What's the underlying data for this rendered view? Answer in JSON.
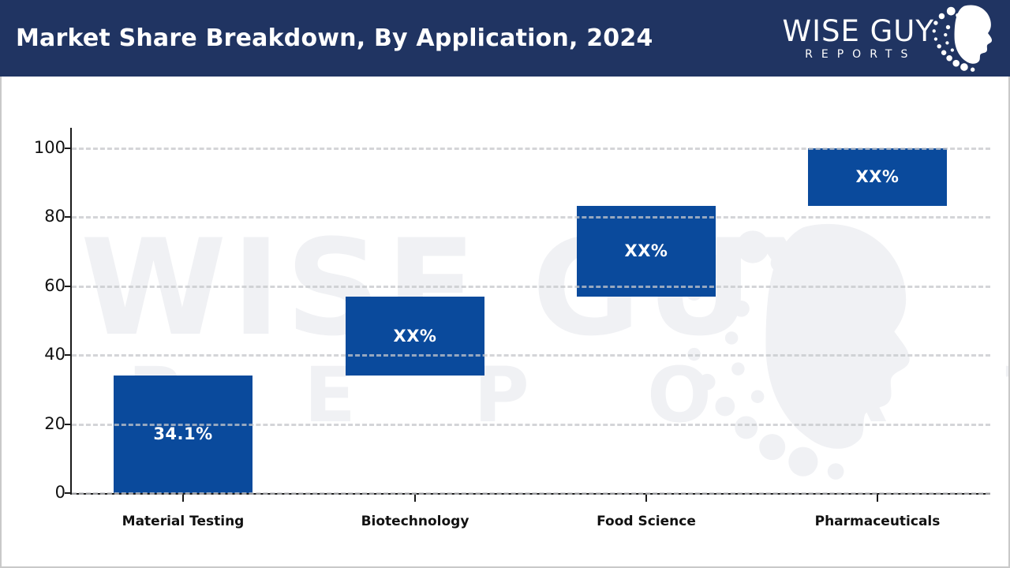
{
  "header": {
    "brand_line1": "WISE GUY",
    "brand_line2": "REPORTS"
  },
  "watermark": {
    "line1": "WISE GUY",
    "line2": "R E P O R T S"
  },
  "colors": {
    "header_bg": "#203462",
    "bar": "#0a4a9c",
    "bar_label": "#ffffff",
    "axis": "#1a1a1a",
    "gridline": "#c5c7cb",
    "watermark": "#f0f1f4",
    "title_text": "#ffffff"
  },
  "chart_data": {
    "type": "bar",
    "subtype": "waterfall",
    "title": "Market Share Breakdown, By Application, 2024",
    "categories": [
      "Material Testing",
      "Biotechnology",
      "Food Science",
      "Pharmaceuticals"
    ],
    "segments": [
      {
        "category": "Material Testing",
        "start": 0,
        "end": 34.1,
        "label": "34.1%"
      },
      {
        "category": "Biotechnology",
        "start": 34.1,
        "end": 57.0,
        "label": "XX%"
      },
      {
        "category": "Food Science",
        "start": 57.0,
        "end": 83.3,
        "label": "XX%"
      },
      {
        "category": "Pharmaceuticals",
        "start": 83.3,
        "end": 100,
        "label": "XX%"
      }
    ],
    "ylim": [
      0,
      100
    ],
    "yticks": [
      0,
      20,
      40,
      60,
      80,
      100
    ],
    "xlabel": "",
    "ylabel": "",
    "grid": "horizontal-dashed",
    "legend": "none"
  }
}
